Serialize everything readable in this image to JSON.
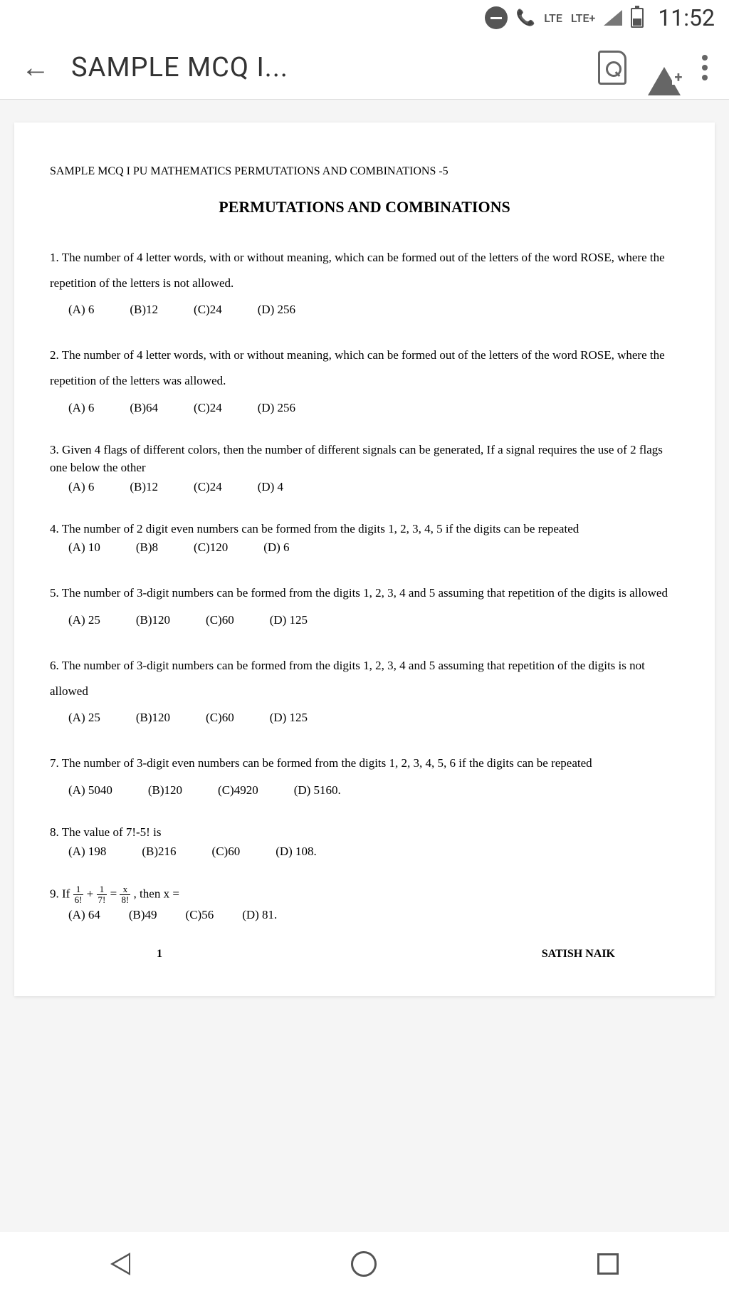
{
  "status": {
    "lte1": "LTE",
    "lte2": "LTE+",
    "time": "11:52"
  },
  "appbar": {
    "title": "SAMPLE MCQ I..."
  },
  "doc": {
    "header": "SAMPLE  MCQ  I PU MATHEMATICS   PERMUTATIONS AND COMBINATIONS -5",
    "title": "PERMUTATIONS AND COMBINATIONS",
    "questions": [
      {
        "num": "1.",
        "text": "The number of 4 letter words, with or without meaning, which can be formed out of the letters of the word ROSE, where the repetition of the letters is not allowed.",
        "opts": [
          "(A) 6",
          "(B)12",
          "(C)24",
          "(D) 256"
        ]
      },
      {
        "num": "2.",
        "text": "The number of 4 letter words, with or without meaning, which can be formed out of the letters of the word ROSE, where the repetition of the letters was allowed.",
        "opts": [
          "(A) 6",
          "(B)64",
          "(C)24",
          "(D) 256"
        ]
      },
      {
        "num": "3.",
        "text": "Given 4 flags of different colors, then the number of different signals can be generated, If  a signal requires the use of 2 flags one below the other",
        "opts": [
          "(A) 6",
          "(B)12",
          "(C)24",
          "(D) 4"
        ]
      },
      {
        "num": "4.",
        "text": "The number of 2 digit even numbers can be formed from the digits 1, 2, 3, 4, 5 if the digits can be repeated",
        "opts": [
          "(A) 10",
          "(B)8",
          "(C)120",
          "(D) 6"
        ]
      },
      {
        "num": "5.",
        "text": "The number of 3-digit numbers can be formed from the digits 1, 2, 3, 4 and 5 assuming that repetition of the digits is allowed",
        "opts": [
          "(A) 25",
          "(B)120",
          "(C)60",
          "(D) 125"
        ]
      },
      {
        "num": "6.",
        "text": "The number of 3-digit numbers can be formed from the digits 1, 2, 3, 4 and 5 assuming that repetition of the digits is not allowed",
        "opts": [
          "(A) 25",
          "(B)120",
          "(C)60",
          "(D) 125"
        ]
      },
      {
        "num": "7.",
        "text": "The number of 3-digit even numbers can be formed from the digits 1, 2, 3, 4, 5, 6 if the digits can be repeated",
        "opts": [
          "(A) 5040",
          "(B)120",
          "(C)4920",
          "(D) 5160."
        ]
      },
      {
        "num": "8.",
        "text": "The value of 7!-5! is",
        "opts": [
          "(A) 198",
          "(B)216",
          "(C)60",
          "(D) 108."
        ]
      }
    ],
    "q9": {
      "num": "9.",
      "prefix": "If",
      "suffix": ", then x =",
      "f1n": "1",
      "f1d": "6!",
      "f2n": "1",
      "f2d": "7!",
      "f3n": "x",
      "f3d": "8!",
      "opts": [
        "(A) 64",
        "(B)49",
        "(C)56",
        "(D) 81."
      ]
    },
    "footer": {
      "page": "1",
      "author": "SATISH NAIK"
    }
  }
}
